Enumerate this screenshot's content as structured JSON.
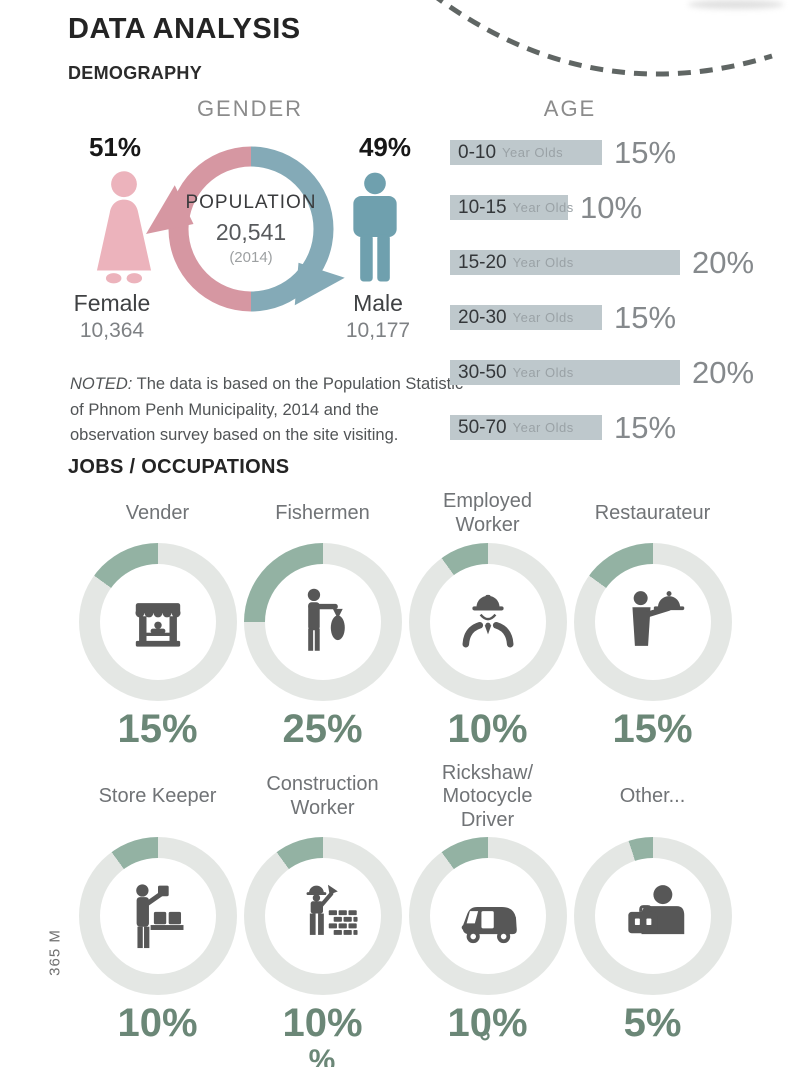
{
  "page": {
    "title": "DATA ANALYSIS",
    "demography_heading": "DEMOGRAPHY",
    "jobs_heading": "JOBS / OCCUPATIONS",
    "side_label": "365 M"
  },
  "gender": {
    "title": "GENDER",
    "center_label": "POPULATION",
    "center_value": "20,541",
    "center_year": "(2014)",
    "female": {
      "pct": "51%",
      "label": "Female",
      "count": "10,364",
      "color": "#d697a2",
      "icon_color": "#ecb3bc"
    },
    "male": {
      "pct": "49%",
      "label": "Male",
      "count": "10,177",
      "color": "#84aab7",
      "icon_color": "#6fa0ae"
    }
  },
  "note": {
    "prefix": "NOTED:",
    "text": " The data is based on the Population Statistic of Phnom Penh Municipality, 2014 and the observation survey based on the site visiting."
  },
  "age": {
    "title": "AGE",
    "bars": [
      {
        "range": "0-10",
        "suffix": "Year Olds",
        "pct": "15%",
        "value": 15
      },
      {
        "range": "10-15",
        "suffix": "Year Olds",
        "pct": "10%",
        "value": 10
      },
      {
        "range": "15-20",
        "suffix": "Year Olds",
        "pct": "20%",
        "value": 20
      },
      {
        "range": "20-30",
        "suffix": "Year Olds",
        "pct": "15%",
        "value": 15
      },
      {
        "range": "30-50",
        "suffix": "Year Olds",
        "pct": "20%",
        "value": 20
      },
      {
        "range": "50-70",
        "suffix": "Year Olds",
        "pct": "15%",
        "value": 15
      }
    ],
    "bar_color": "#bec8cc"
  },
  "jobs": {
    "style": {
      "arc_color": "#93b2a3",
      "track_color": "#e4e7e4",
      "pct_color": "#6b8777"
    },
    "items": [
      {
        "label": "Vender",
        "pct": "15%",
        "value": 15,
        "icon": "market-stall-icon"
      },
      {
        "label": "Fishermen",
        "pct": "25%",
        "value": 25,
        "icon": "fisherman-icon"
      },
      {
        "label": "Employed\nWorker",
        "pct": "10%",
        "value": 10,
        "icon": "hardhat-worker-icon"
      },
      {
        "label": "Restaurateur",
        "pct": "15%",
        "value": 15,
        "icon": "waiter-icon"
      },
      {
        "label": "Store Keeper",
        "pct": "10%",
        "value": 10,
        "icon": "store-keeper-icon"
      },
      {
        "label": "Construction\nWorker",
        "pct": "10%",
        "value": 10,
        "icon": "construction-worker-icon"
      },
      {
        "label": "Rickshaw/\nMotocycle\nDriver",
        "pct": "10%",
        "value": 10,
        "icon": "tuktuk-icon"
      },
      {
        "label": "Other...",
        "pct": "5%",
        "value": 5,
        "icon": "briefcase-person-icon"
      }
    ]
  },
  "artifacts": {
    "below_construction": "%",
    "below_rickshaw": "°"
  },
  "chart_data": [
    {
      "type": "pie",
      "title": "GENDER",
      "categories": [
        "Female",
        "Male"
      ],
      "values": [
        51,
        49
      ],
      "counts": [
        10364,
        10177
      ],
      "center_label": "POPULATION",
      "total": 20541,
      "year": "2014",
      "colors": [
        "#d697a2",
        "#84aab7"
      ],
      "legend_position": "sides"
    },
    {
      "type": "bar",
      "title": "AGE",
      "orientation": "horizontal",
      "categories": [
        "0-10 Year Olds",
        "10-15 Year Olds",
        "15-20 Year Olds",
        "20-30 Year Olds",
        "30-50 Year Olds",
        "50-70 Year Olds"
      ],
      "values": [
        15,
        10,
        20,
        15,
        20,
        15
      ],
      "xlabel": "",
      "ylabel": "",
      "xlim": [
        0,
        25
      ],
      "grid": false,
      "bar_color": "#bec8cc",
      "value_labels": [
        "15%",
        "10%",
        "20%",
        "15%",
        "20%",
        "15%"
      ]
    },
    {
      "type": "pie",
      "subtype": "donut-grid",
      "title": "JOBS / OCCUPATIONS",
      "categories": [
        "Vender",
        "Fishermen",
        "Employed Worker",
        "Restaurateur",
        "Store Keeper",
        "Construction Worker",
        "Rickshaw/Motocycle Driver",
        "Other..."
      ],
      "values": [
        15,
        25,
        10,
        15,
        10,
        10,
        10,
        5
      ],
      "arc_color": "#93b2a3",
      "track_color": "#e4e7e4",
      "arc_direction": "counterclockwise-from-top"
    }
  ]
}
